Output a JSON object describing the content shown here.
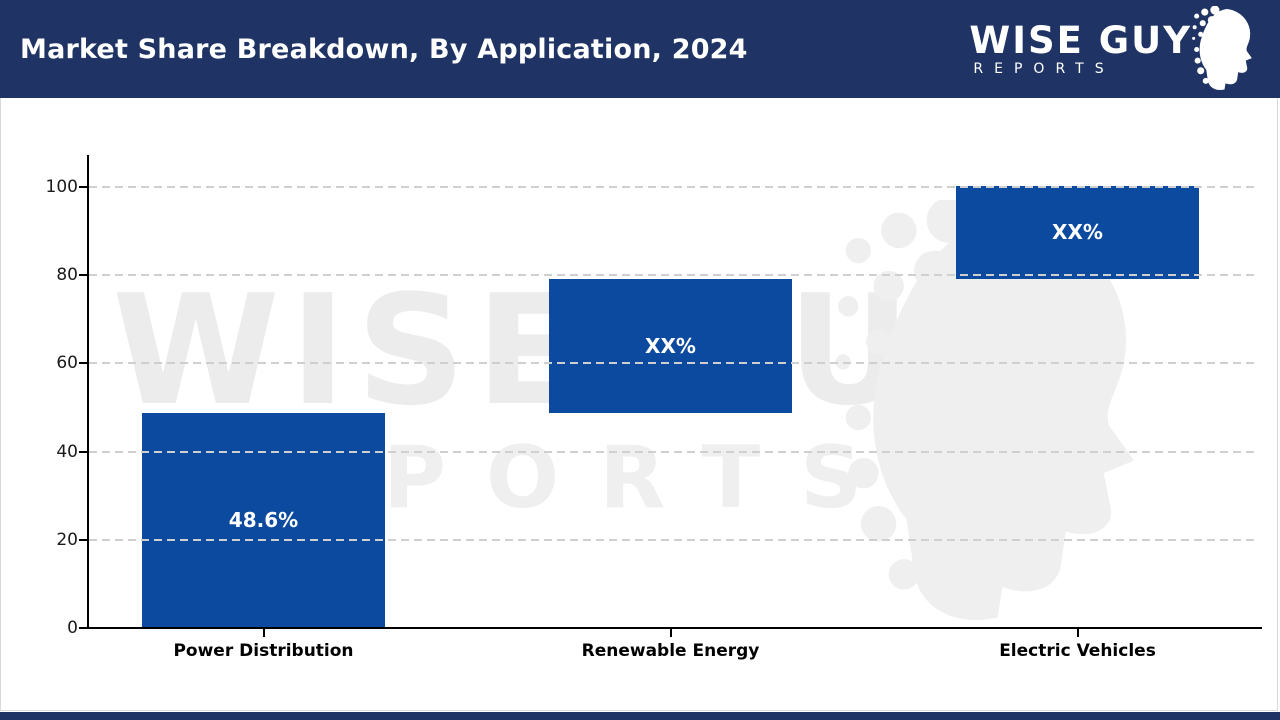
{
  "header": {
    "title": "Market Share Breakdown, By Application, 2024",
    "bg_color": "#1f3464",
    "logo": {
      "line1": "WISE GUY",
      "line2": "REPORTS"
    }
  },
  "watermark": {
    "line1": "WISE GUY",
    "line2": "REPORTS"
  },
  "footer": {
    "bg_color": "#1f3464"
  },
  "chart_data": {
    "type": "bar",
    "subtype": "waterfall",
    "title": "Market Share Breakdown, By Application, 2024",
    "categories": [
      "Power Distribution",
      "Renewable Energy",
      "Electric Vehicles"
    ],
    "segments": [
      {
        "category": "Power Distribution",
        "start": 0,
        "end": 48.6,
        "label": "48.6%"
      },
      {
        "category": "Renewable Energy",
        "start": 48.6,
        "end": 79.0,
        "label": "XX%"
      },
      {
        "category": "Electric Vehicles",
        "start": 79.0,
        "end": 100.0,
        "label": "XX%"
      }
    ],
    "ylim": [
      0,
      100
    ],
    "yticks": [
      0,
      20,
      40,
      60,
      80,
      100
    ],
    "grid": "dashed-horizontal",
    "grid_color": "#cfcfcf",
    "bar_color": "#0b4a9e",
    "bar_label_color": "#ffffff",
    "xlabel": "",
    "ylabel": "",
    "legend": "none"
  }
}
